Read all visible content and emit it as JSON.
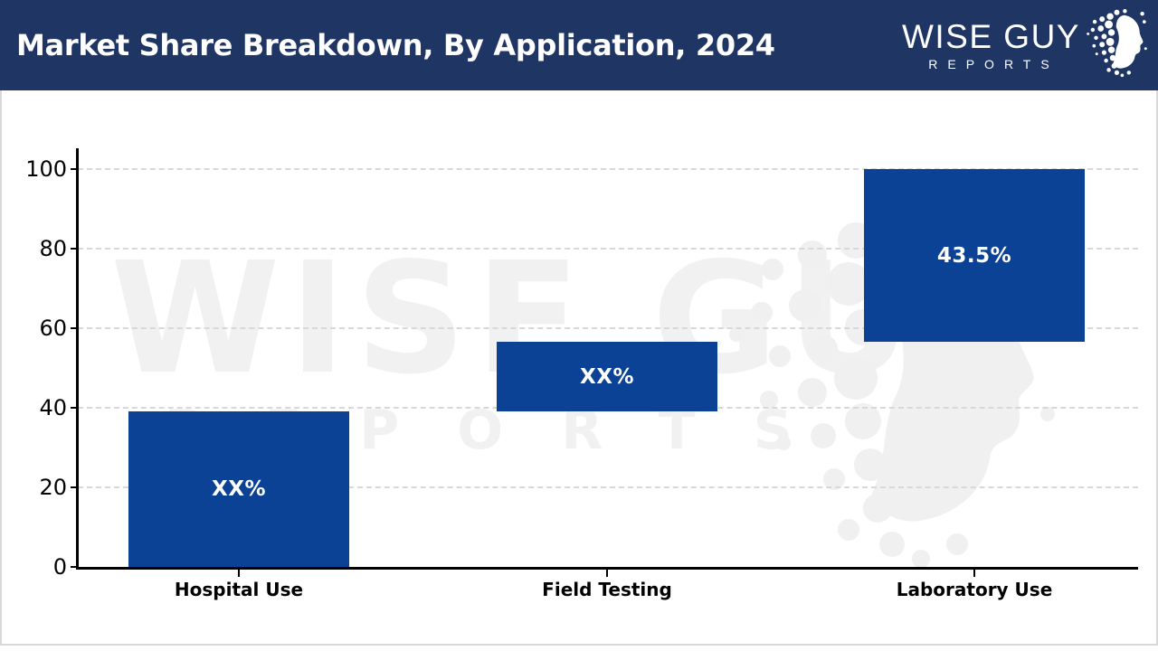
{
  "header": {
    "title": "Market Share Breakdown, By Application, 2024",
    "bg_color": "#1f3564",
    "logo": {
      "wordmark": "WISE GUY",
      "subtext": "REPORTS"
    }
  },
  "watermark": {
    "wordmark": "WISE GUY",
    "subtext": "REPORTS"
  },
  "chart_data": {
    "type": "bar",
    "variant": "floating-waterfall",
    "title": "Market Share Breakdown, By Application, 2024",
    "categories": [
      "Hospital Use",
      "Field Testing",
      "Laboratory Use"
    ],
    "bars": [
      {
        "category": "Hospital Use",
        "start": 0,
        "end": 39,
        "value_label": "XX%"
      },
      {
        "category": "Field Testing",
        "start": 39,
        "end": 56.5,
        "value_label": "XX%"
      },
      {
        "category": "Laboratory Use",
        "start": 56.5,
        "end": 100,
        "value_label": "43.5%"
      }
    ],
    "yticks": [
      0,
      20,
      40,
      60,
      80,
      100
    ],
    "ylim": [
      0,
      105
    ],
    "xlabel": "",
    "ylabel": "",
    "bar_color": "#0b4296",
    "grid": {
      "horizontal": true,
      "style": "dashed",
      "color": "#d8d8d8"
    },
    "legend": null
  }
}
